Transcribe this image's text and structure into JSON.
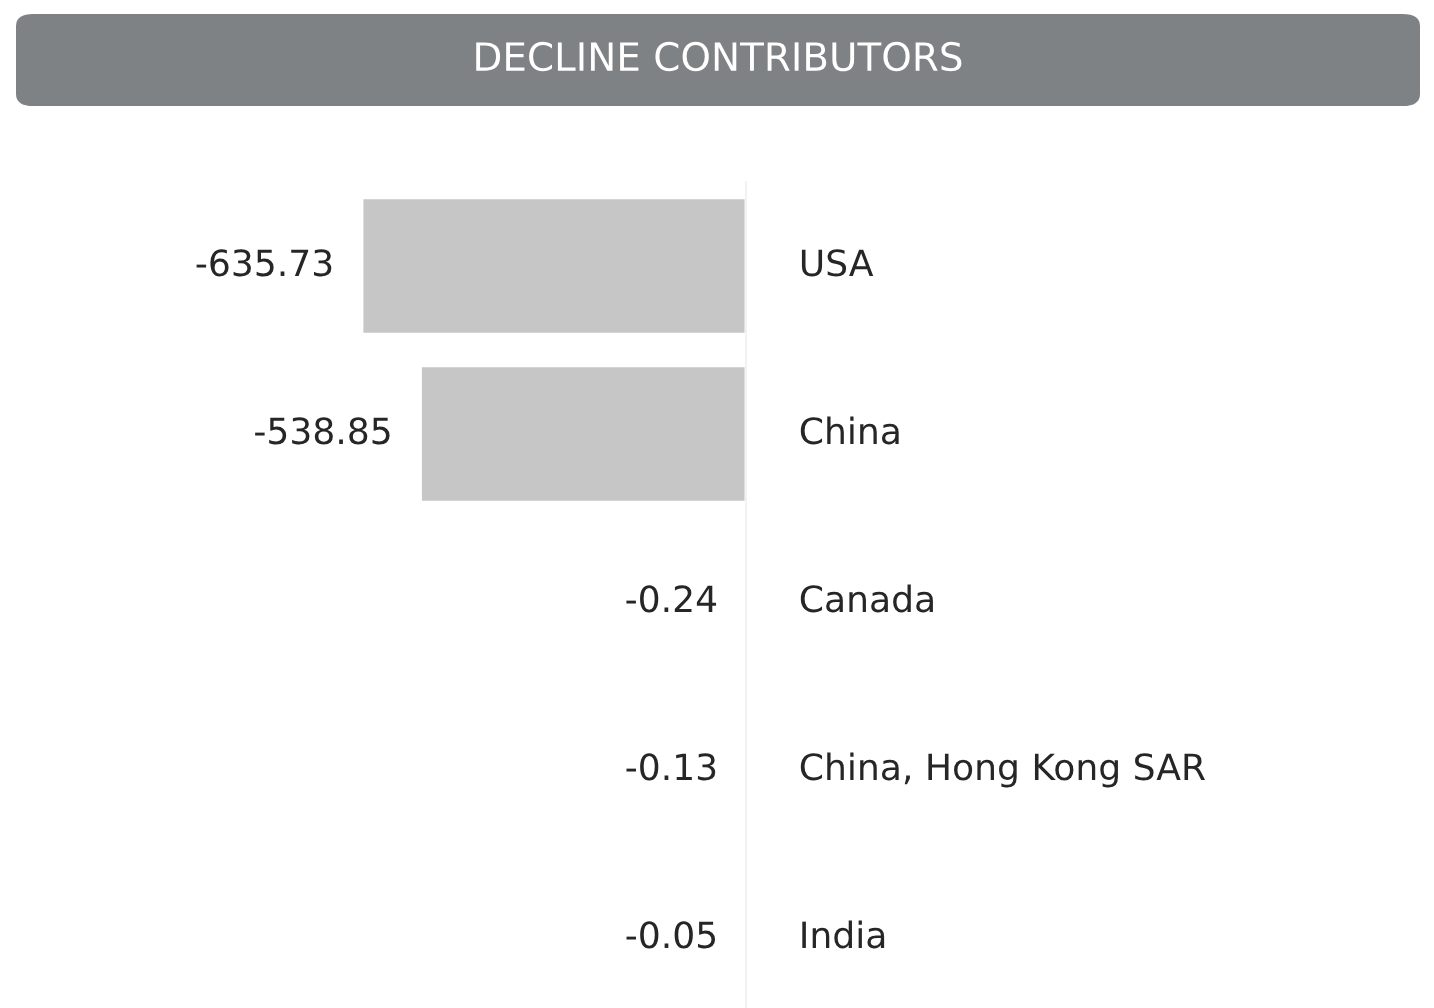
{
  "chart_data": {
    "type": "bar",
    "orientation": "horizontal",
    "title": "DECLINE CONTRIBUTORS",
    "categories": [
      "USA",
      "China",
      "Canada",
      "China, Hong Kong SAR",
      "India"
    ],
    "values": [
      -635.73,
      -538.85,
      -0.24,
      -0.13,
      -0.05
    ],
    "color": "#c6c6c6",
    "data_labels": true
  }
}
